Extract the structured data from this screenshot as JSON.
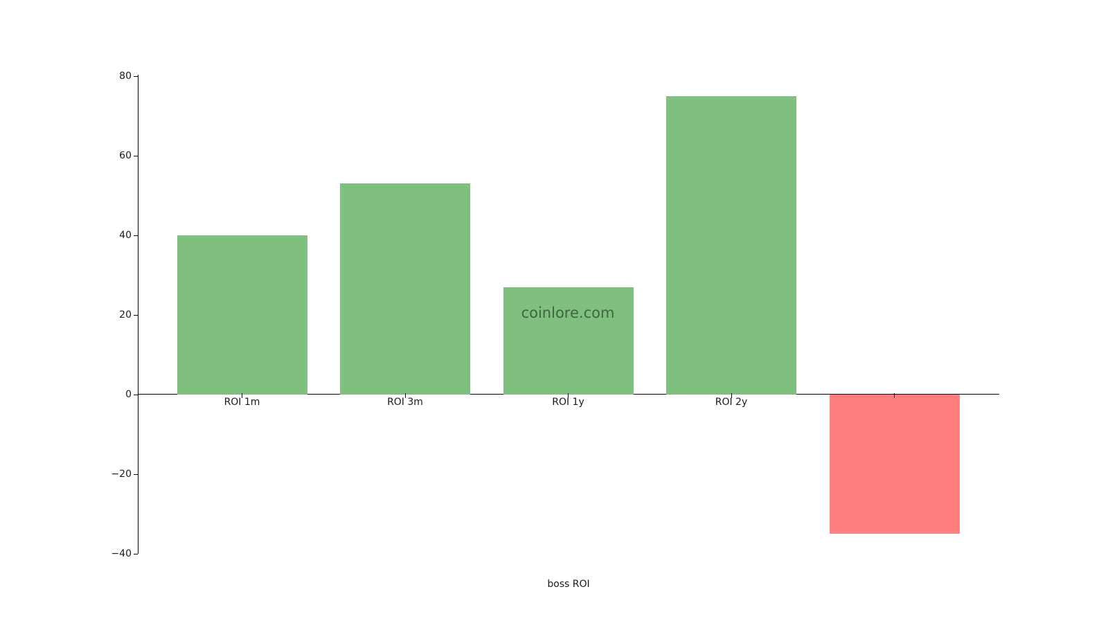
{
  "watermark": "coinlore.com",
  "x_axis_title": "boss ROI",
  "colors": {
    "positive_bar": "#7fbf7f",
    "negative_bar": "#ff7f7f",
    "axis": "#000000",
    "text": "#1a1a1a"
  },
  "chart_data": {
    "type": "bar",
    "title": "",
    "xlabel": "boss ROI",
    "ylabel": "",
    "categories": [
      "ROI 1m",
      "ROI 3m",
      "ROI 1y",
      "ROI 2y",
      ""
    ],
    "values": [
      40,
      53,
      27,
      75,
      -35
    ],
    "bar_colors": [
      "#7fbf7f",
      "#7fbf7f",
      "#7fbf7f",
      "#7fbf7f",
      "#ff7f7f"
    ],
    "ylim": [
      -40,
      80
    ],
    "yticks": [
      80,
      60,
      40,
      20,
      0,
      -20,
      -40
    ],
    "ytick_labels": [
      "80",
      "60",
      "40",
      "20",
      "0",
      "−20",
      "−40"
    ],
    "grid": false,
    "legend_position": "none",
    "watermark": "coinlore.com"
  }
}
